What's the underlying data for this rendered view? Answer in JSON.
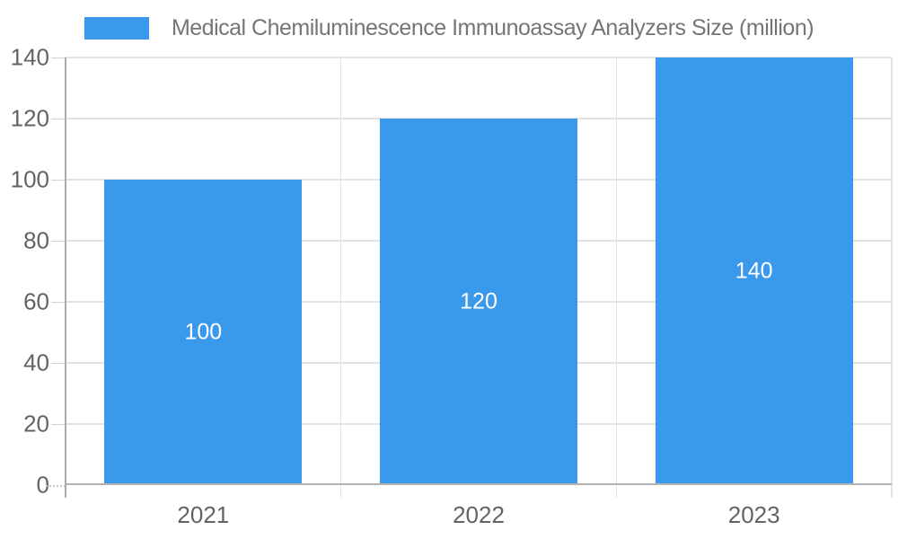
{
  "legend": {
    "series_label": "Medical Chemiluminescence Immunoassay Analyzers Size (million)"
  },
  "chart_data": {
    "type": "bar",
    "title": "Medical Chemiluminescence Immunoassay Analyzers Size (million)",
    "categories": [
      "2021",
      "2022",
      "2023"
    ],
    "values": [
      100,
      120,
      140
    ],
    "data_labels": [
      "100",
      "120",
      "140"
    ],
    "xlabel": "",
    "ylabel": "",
    "ylim": [
      0,
      140
    ],
    "ytick_step": 20,
    "yticks": [
      0,
      20,
      40,
      60,
      80,
      100,
      120,
      140
    ],
    "grid": true,
    "legend_position": "top"
  },
  "colors": {
    "bar": "#3B99EC",
    "gridline": "#e3e3e3",
    "axis_line": "#ababab",
    "baseline": "#b3b3b3",
    "tick_label": "#636363",
    "legend_text": "#757575",
    "data_label": "#ffffff",
    "background": "#ffffff"
  }
}
